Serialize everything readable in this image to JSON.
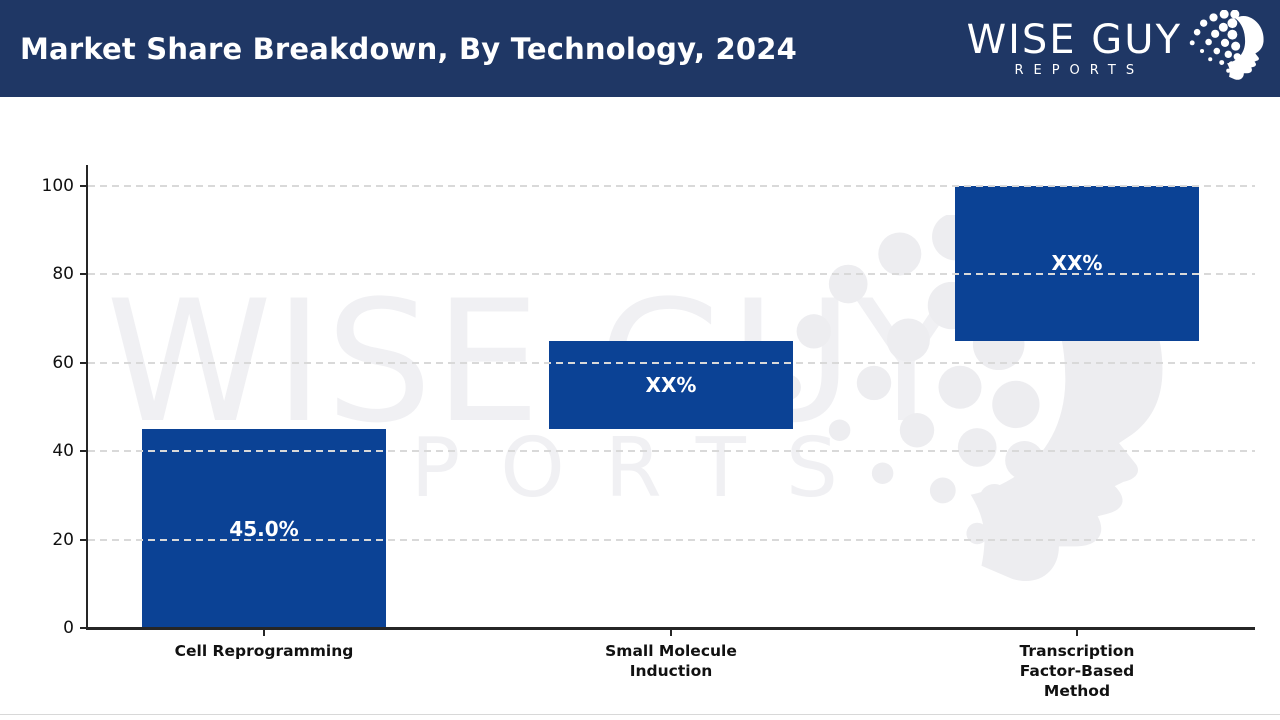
{
  "header": {
    "title": "Market Share Breakdown, By Technology, 2024",
    "logo": {
      "wordmark": "WISE GUY",
      "subtext": "REPORTS"
    }
  },
  "watermark": {
    "wordmark": "WISE GUY",
    "subtext": "REPORTS"
  },
  "colors": {
    "header_bg": "#1f3765",
    "bar": "#0b4295",
    "bar_label": "#ffffff",
    "grid": "#d9d9d9",
    "axis": "#262626",
    "watermark": "#f0f0f3"
  },
  "chart_data": {
    "type": "bar",
    "variant": "waterfall",
    "title": "Market Share Breakdown, By Technology, 2024",
    "categories": [
      [
        "Cell Reprogramming"
      ],
      [
        "Small Molecule",
        "Induction"
      ],
      [
        "Transcription",
        "Factor-Based",
        "Method"
      ]
    ],
    "series": [
      {
        "name": "Market Share (%)",
        "segments": [
          {
            "from": 0,
            "to": 45,
            "label": "45.0%"
          },
          {
            "from": 45,
            "to": 65,
            "label": "XX%"
          },
          {
            "from": 65,
            "to": 100,
            "label": "XX%"
          }
        ]
      }
    ],
    "yticks": [
      0,
      20,
      40,
      60,
      80,
      100
    ],
    "ylim": [
      0,
      105
    ],
    "xlabel": "",
    "ylabel": "",
    "grid": "horizontal-dashed",
    "legend": "none"
  }
}
